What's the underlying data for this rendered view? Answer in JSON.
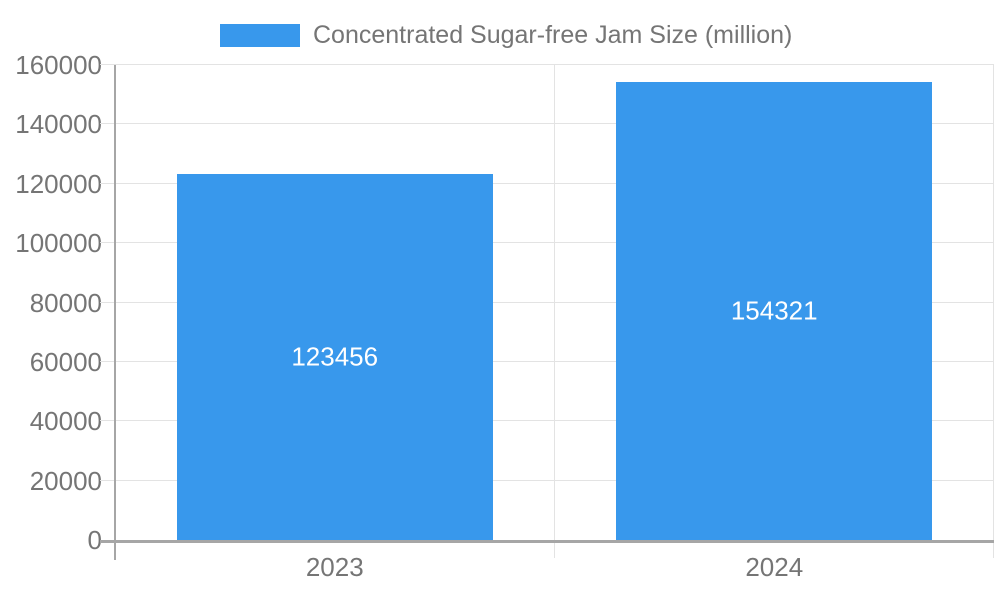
{
  "legend": {
    "label": "Concentrated Sugar-free Jam Size (million)"
  },
  "chart_data": {
    "type": "bar",
    "title": "",
    "xlabel": "",
    "ylabel": "",
    "categories": [
      "2023",
      "2024"
    ],
    "series": [
      {
        "name": "Concentrated Sugar-free Jam Size (million)",
        "values": [
          123456,
          154321
        ]
      }
    ],
    "bar_value_labels": [
      "123456",
      "154321"
    ],
    "ylim": [
      0,
      160000
    ],
    "yticks": [
      0,
      20000,
      40000,
      60000,
      80000,
      100000,
      120000,
      140000,
      160000
    ],
    "grid": true,
    "legend_position": "top",
    "colors": {
      "bar": "#3898EC",
      "value_label": "#FFFFFF",
      "axis_text": "#757575",
      "axis_line": "#A6A6A6",
      "gridline": "#E3E3E3",
      "background": "#FFFFFF"
    }
  }
}
